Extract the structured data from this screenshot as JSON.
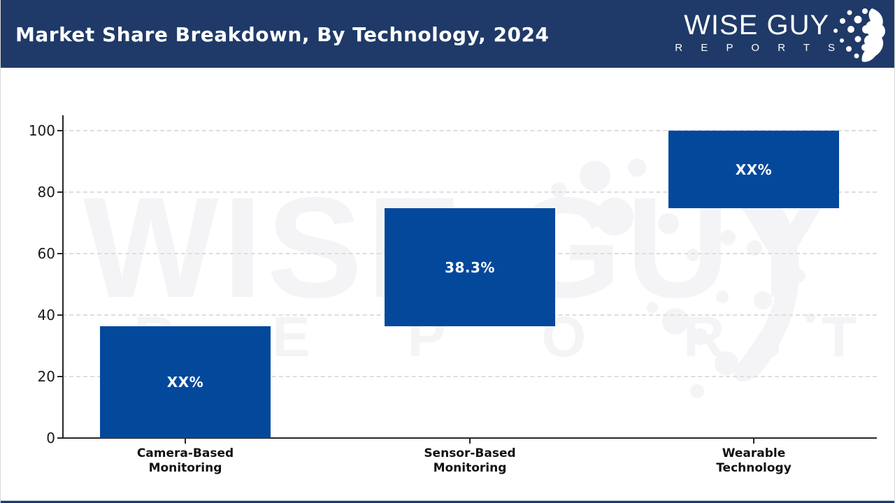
{
  "header": {
    "title": "Market Share Breakdown, By Technology, 2024",
    "logo": {
      "name": "WISE GUY",
      "sub": "R E P O R T S",
      "icon": "dot-face-profile"
    }
  },
  "watermark": {
    "line1": "WISE GUY",
    "line2": "R E P O R T S",
    "icon": "dot-face-profile"
  },
  "chart_data": {
    "type": "bar",
    "subtype": "waterfall",
    "title": "Market Share Breakdown, By Technology, 2024",
    "categories": [
      "Camera-Based\nMonitoring",
      "Sensor-Based\nMonitoring",
      "Wearable\nTechnology"
    ],
    "segments": [
      {
        "category": "Camera-Based Monitoring",
        "start": 0,
        "end": 36.4,
        "label": "XX%"
      },
      {
        "category": "Sensor-Based Monitoring",
        "start": 36.4,
        "end": 74.7,
        "label": "38.3%"
      },
      {
        "category": "Wearable Technology",
        "start": 74.7,
        "end": 100,
        "label": "XX%"
      }
    ],
    "yticks": [
      0,
      20,
      40,
      60,
      80,
      100
    ],
    "ylim": [
      0,
      100
    ],
    "xlabel": "",
    "ylabel": "",
    "grid": "horizontal-dashed",
    "legend": "none",
    "bar_color": "#04489c",
    "bar_label_color": "#ffffff"
  },
  "colors": {
    "header_bg": "#1f3a68",
    "bar_blue": "#04489c",
    "axis": "#262626",
    "grid": "#dedede",
    "watermark": "#f4f4f6",
    "frame_border": "#d9d9d9",
    "title_text": "#ffffff"
  }
}
